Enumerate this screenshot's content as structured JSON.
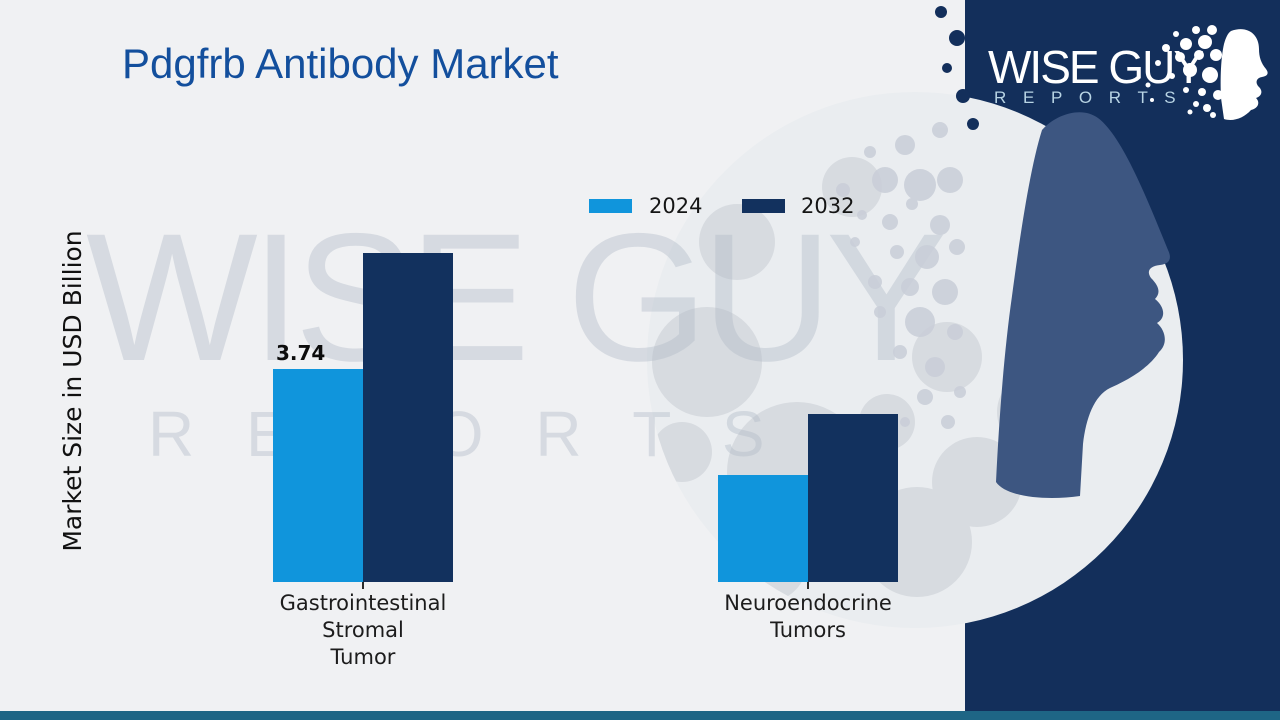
{
  "title": "Pdgfrb Antibody Market",
  "y_axis_label": "Market Size in USD Billion",
  "watermark": {
    "line1": "WISE GUY",
    "line2": "R E P O R T S"
  },
  "logo": {
    "name": "WISE GUY",
    "subtitle": "R E P O R T S"
  },
  "colors": {
    "background": "#f0f1f3",
    "title": "#134f9d",
    "bar_2024": "#1095dc",
    "bar_2032": "#12315e",
    "logo_panel": "#132f5b",
    "footer_bar": "#1e6585"
  },
  "chart_data": {
    "type": "bar",
    "title": "Pdgfrb Antibody Market",
    "xlabel": "",
    "ylabel": "Market Size in USD Billion",
    "categories": [
      "Gastrointestinal Stromal Tumor",
      "Neuroendocrine Tumors"
    ],
    "categories_multiline": [
      "Gastrointestinal\nStromal\nTumor",
      "Neuroendocrine\nTumors"
    ],
    "series": [
      {
        "name": "2024",
        "color": "#1095dc",
        "values": [
          3.74,
          1.88
        ]
      },
      {
        "name": "2032",
        "color": "#12315e",
        "values": [
          5.78,
          2.95
        ]
      }
    ],
    "value_labels": [
      {
        "series": 0,
        "group": 0,
        "text": "3.74"
      }
    ],
    "ylim": [
      0,
      6.5
    ],
    "grid": false,
    "legend_position": "top-center"
  }
}
